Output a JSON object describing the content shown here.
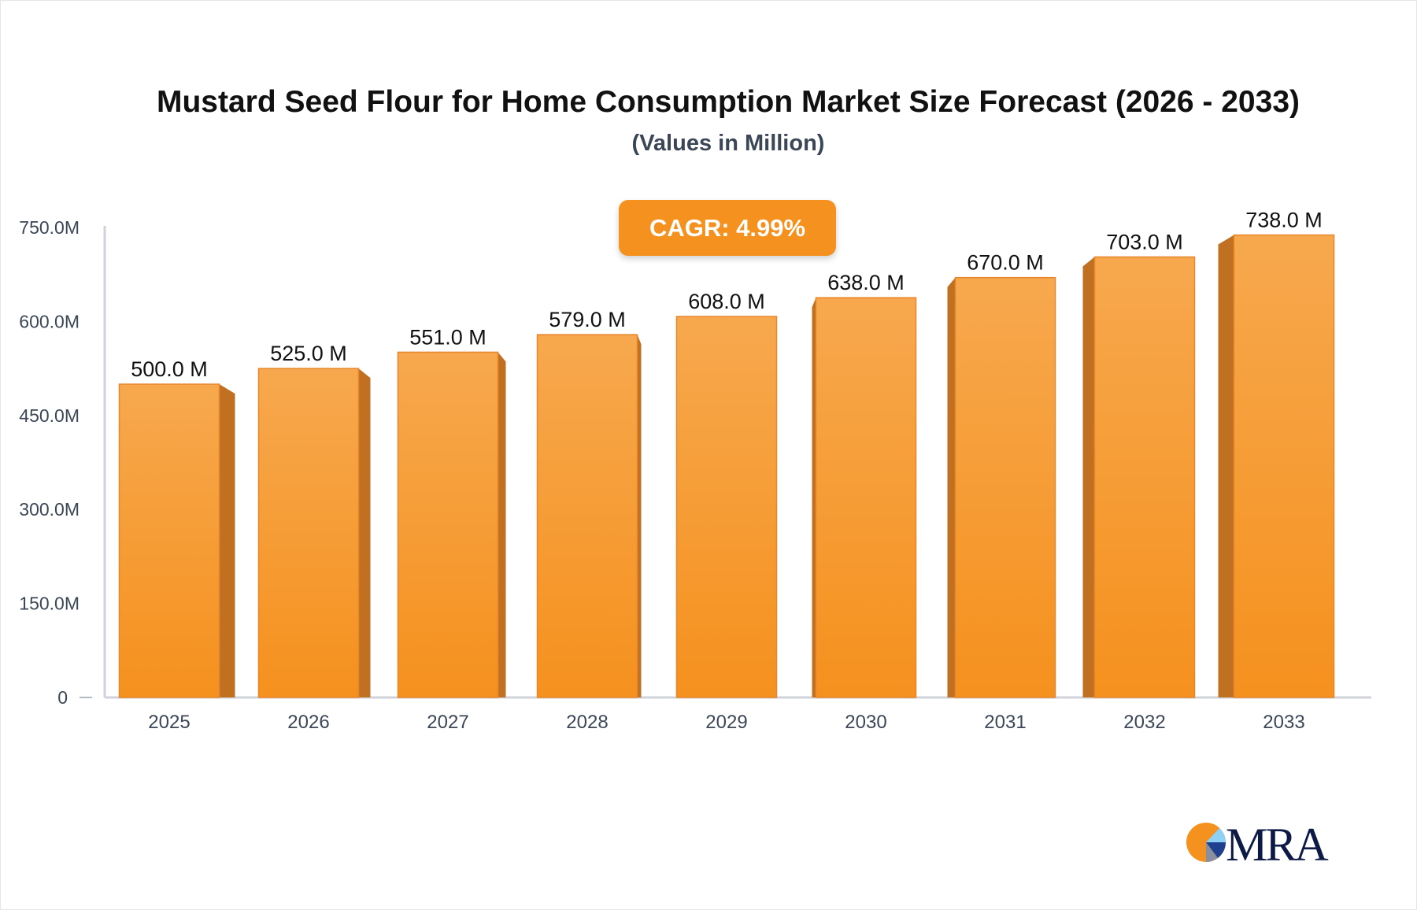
{
  "chart_data": {
    "type": "bar",
    "title": "Mustard Seed Flour for Home Consumption Market Size Forecast (2026 - 2033)",
    "subtitle": "(Values in Million)",
    "categories": [
      "2025",
      "2026",
      "2027",
      "2028",
      "2029",
      "2030",
      "2031",
      "2032",
      "2033"
    ],
    "values": [
      500.0,
      525.0,
      551.0,
      579.0,
      608.0,
      638.0,
      670.0,
      703.0,
      738.0
    ],
    "data_labels": [
      "500.0 M",
      "525.0 M",
      "551.0 M",
      "579.0 M",
      "608.0 M",
      "638.0 M",
      "670.0 M",
      "703.0 M",
      "738.0 M"
    ],
    "yticks": [
      0,
      150,
      300,
      450,
      600,
      750
    ],
    "ytick_labels": [
      "0",
      "150.0M",
      "300.0M",
      "450.0M",
      "600.0M",
      "750.0M"
    ],
    "ylim": [
      0,
      750
    ],
    "xlabel": "",
    "ylabel": "",
    "grid": false,
    "annotation": "CAGR: 4.99%",
    "colors": {
      "bar_top": "#f7a84e",
      "bar_bottom": "#f5911e",
      "bar_side": "#c07020",
      "accent": "#f5911e"
    }
  },
  "logo": {
    "text": "MRA",
    "colors": [
      "#f5911e",
      "#8fd0f5",
      "#1f3f8f",
      "#0d1a45"
    ]
  }
}
